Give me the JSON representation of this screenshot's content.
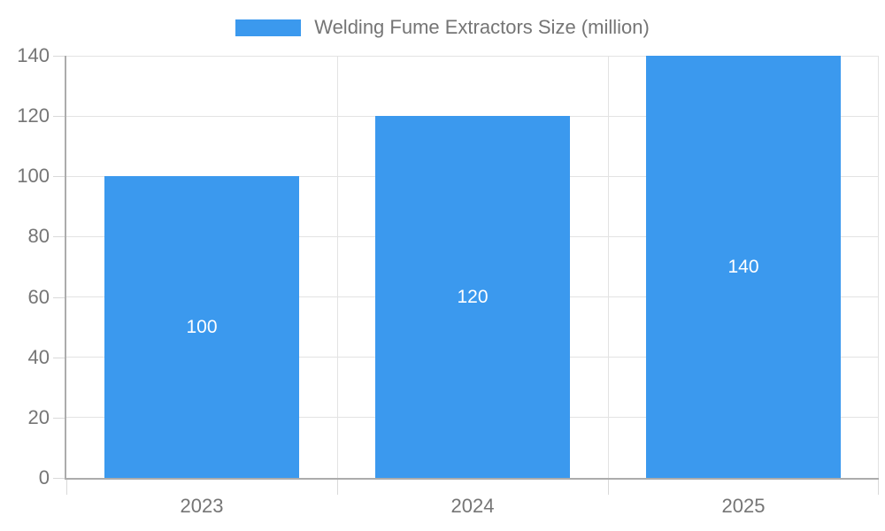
{
  "chart_data": {
    "type": "bar",
    "title": "",
    "series_name": "Welding Fume Extractors Size (million)",
    "legend_entries": [
      "Welding Fume Extractors Size (million)"
    ],
    "categories": [
      "2023",
      "2024",
      "2025"
    ],
    "values": [
      100,
      120,
      140
    ],
    "show_data_labels": true,
    "xlabel": "",
    "ylabel": "",
    "ylim": [
      0,
      140
    ],
    "yticks": [
      0,
      20,
      40,
      60,
      80,
      100,
      120,
      140
    ],
    "grid": true,
    "legend_position": "top",
    "colors": {
      "bar": "#3B99EE",
      "data_label": "#FFFFFF",
      "tick_text": "#757575",
      "gridline": "#E3E3E3",
      "tick": "#D9D9D9",
      "axis_line": "#ACACAC",
      "background": "#FFFFFF"
    }
  }
}
